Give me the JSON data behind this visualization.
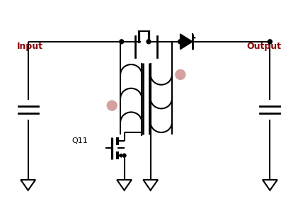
{
  "bg_color": "#ffffff",
  "input_label": "Input",
  "output_label": "Output",
  "q11_label": "Q11",
  "input_label_color": "#8B0000",
  "output_label_color": "#8B0000",
  "q11_label_color": "#000000",
  "line_color": "#000000",
  "lw": 1.5,
  "dot_color": "#d4a0a0",
  "figsize": [
    4.21,
    2.91
  ],
  "dpi": 100
}
